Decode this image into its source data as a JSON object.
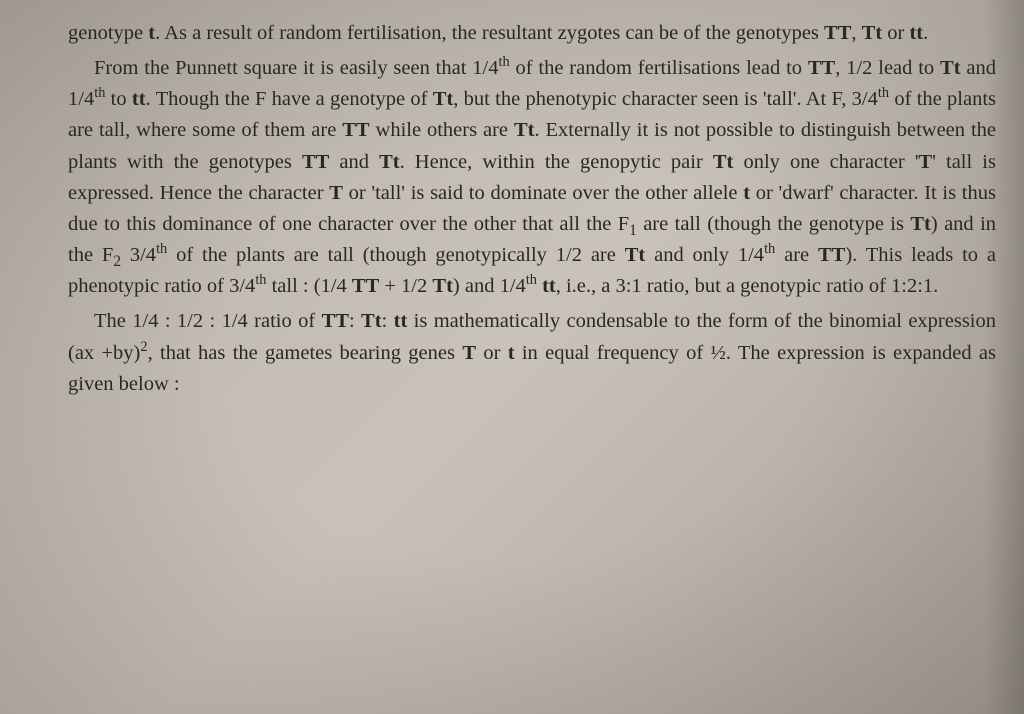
{
  "para1": {
    "t1": "genotype ",
    "b1": "t",
    "t2": ". As a result of random fertilisation, the resultant zygotes can be of the genotypes ",
    "b2": "TT",
    "t3": ", ",
    "b3": "Tt",
    "t4": " or ",
    "b4": "tt",
    "t5": "."
  },
  "para2": {
    "t1": "From the Punnett square it is easily seen that 1/4",
    "sup1": "th",
    "t2": " of the random fertilisations lead to ",
    "b1": "TT",
    "t3": ", 1/2 lead to ",
    "b2": "Tt",
    "t4": " and 1/4",
    "sup2": "th",
    "t5": " to ",
    "b3": "tt",
    "t6": ". Though the F have a genotype of ",
    "b4": "Tt",
    "t7": ", but the phenotypic character seen is 'tall'. At F, 3/4",
    "sup3": "th",
    "t8": " of the plants are tall, where some of them are ",
    "b5": "TT",
    "t9": " while others are ",
    "b6": "Tt",
    "t10": ". Externally it is not possible to distinguish between the plants with the genotypes ",
    "b7": "TT",
    "t11": " and ",
    "b8": "Tt",
    "t12": ". Hence, within the genopytic pair ",
    "b9": "Tt",
    "t13": " only one character '",
    "b10": "T",
    "t14": "' tall is expressed. Hence the character ",
    "b11": "T",
    "t15": " or 'tall' is said to dominate over the other allele ",
    "b12": "t",
    "t16": " or 'dwarf' character. It is thus due to this dominance of one character over the other that all the F",
    "sub1": "1",
    "t17": " are tall (though the genotype is ",
    "b13": "Tt",
    "t18": ") and in the F",
    "sub2": "2",
    "t19": " 3/4",
    "sup4": "th",
    "t20": " of the plants are tall (though genotypically 1/2 are ",
    "b14": "Tt",
    "t21": " and only 1/4",
    "sup5": "th",
    "t22": " are ",
    "b15": "TT",
    "t23": "). This leads to a phenotypic ratio of 3/4",
    "sup6": "th",
    "t24": " tall : (1/4 ",
    "b16": "TT",
    "t25": " + 1/2 ",
    "b17": "Tt",
    "t26": ") and 1/4",
    "sup7": "th",
    "t27": " ",
    "b18": "tt",
    "t28": ", i.e., a 3:1 ratio, but a genotypic ratio of 1:2:1."
  },
  "para3": {
    "t1": "The 1/4 : 1/2 : 1/4 ratio of ",
    "b1": "TT",
    "t2": ": ",
    "b2": "Tt",
    "t3": ": ",
    "b3": "tt",
    "t4": " is mathematically condensable to the form of the binomial expression (ax +by)",
    "sup1": "2",
    "t5": ", that has the gametes bearing genes ",
    "b4": "T",
    "t6": " or ",
    "b5": "t",
    "t7": " in equal frequency of ½. The expression is expanded as given below :"
  }
}
